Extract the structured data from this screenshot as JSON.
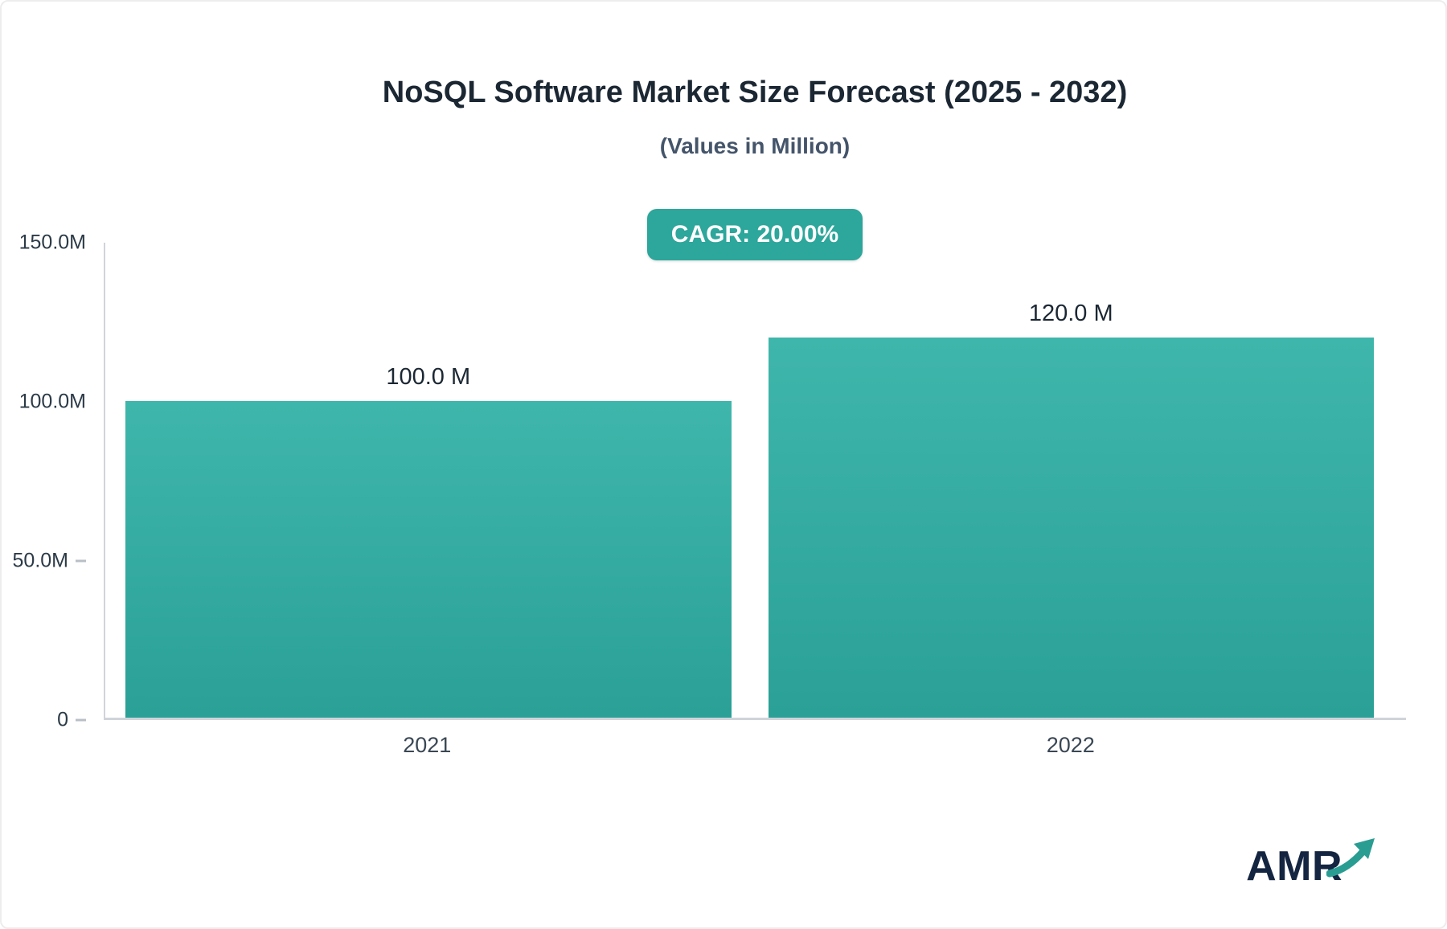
{
  "title": "NoSQL Software Market Size Forecast (2025 - 2032)",
  "subtitle": "(Values in Million)",
  "badge": {
    "label": "CAGR: 20.00%"
  },
  "logo": {
    "text": "AMR"
  },
  "colors": {
    "accent": "#2DA69B",
    "bar_gradient_top": "#3FB6AB",
    "bar_gradient_bottom": "#2AA096",
    "title_text": "#1B2733",
    "subtitle_text": "#44546A",
    "axis_line": "#CFD4D9",
    "tick_text": "#2C3A47"
  },
  "chart_data": {
    "type": "bar",
    "title": "NoSQL Software Market Size Forecast (2025 - 2032)",
    "subtitle": "(Values in Million)",
    "annotation": "CAGR: 20.00%",
    "categories": [
      "2021",
      "2022"
    ],
    "values": [
      100,
      120
    ],
    "value_labels": [
      "100.0 M",
      "120.0 M"
    ],
    "unit": "Million",
    "xlabel": "",
    "ylabel": "",
    "ylim": [
      0,
      150
    ],
    "yticks": [
      {
        "value": 150,
        "label": "150.0M",
        "tick_mark": false
      },
      {
        "value": 100,
        "label": "100.0M",
        "tick_mark": false
      },
      {
        "value": 50,
        "label": "50.0M",
        "tick_mark": true
      },
      {
        "value": 0,
        "label": "0",
        "tick_mark": true
      }
    ],
    "grid": false,
    "legend": "none"
  }
}
